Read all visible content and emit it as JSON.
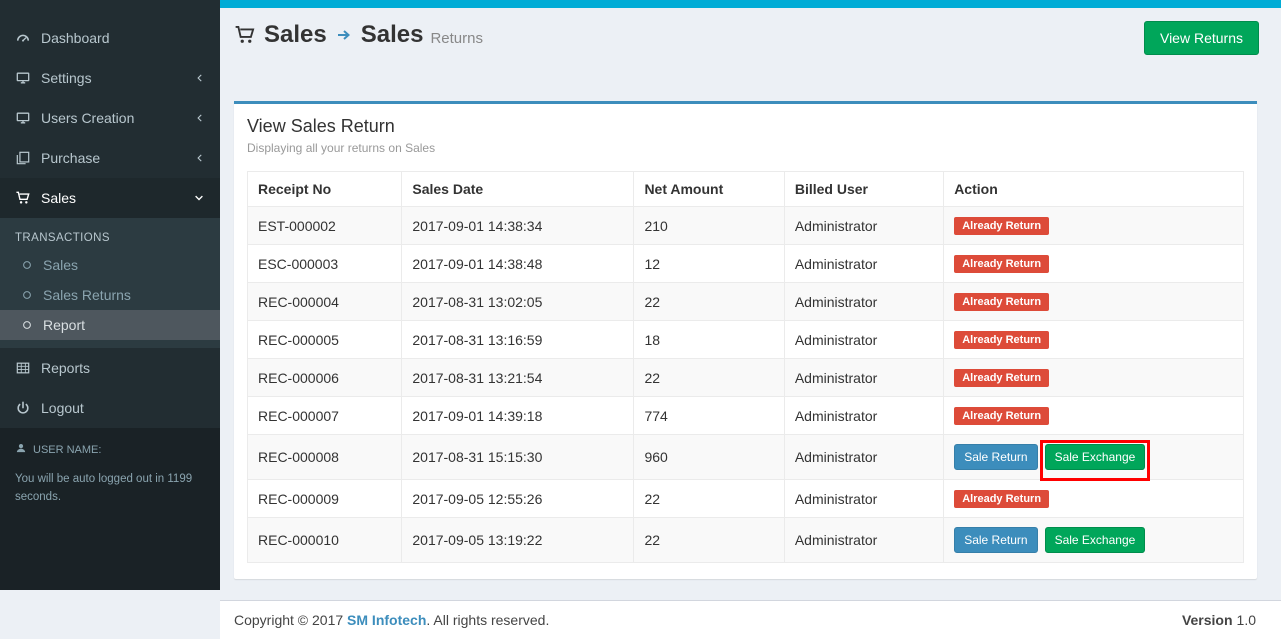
{
  "colors": {
    "primary": "#3c8dbc",
    "success": "#00a65a",
    "danger": "#dd4b39",
    "topbar": "#00acd6",
    "annotation": "#ff0000"
  },
  "sidebar": {
    "items": [
      {
        "label": "Dashboard",
        "icon": "dashboard-icon"
      },
      {
        "label": "Settings",
        "icon": "desktop-icon",
        "chevron": "left"
      },
      {
        "label": "Users Creation",
        "icon": "desktop-icon",
        "chevron": "left"
      },
      {
        "label": "Purchase",
        "icon": "copy-icon",
        "chevron": "left"
      },
      {
        "label": "Sales",
        "icon": "cart-icon",
        "chevron": "down",
        "active": true
      }
    ],
    "section_label": "TRANSACTIONS",
    "sub_items": [
      {
        "label": "Sales",
        "icon": "circle-icon"
      },
      {
        "label": "Sales Returns",
        "icon": "circle-icon"
      },
      {
        "label": "Report",
        "icon": "circle-icon",
        "highlighted": true
      }
    ],
    "secondary_items": [
      {
        "label": "Reports",
        "icon": "table-icon"
      },
      {
        "label": "Logout",
        "icon": "power-icon"
      }
    ],
    "user_label": "USER NAME:",
    "auto_logout_text": "You will be auto logged out in 1199 seconds."
  },
  "header": {
    "breadcrumb_primary": "Sales",
    "breadcrumb_secondary": "Sales",
    "breadcrumb_suffix": "Returns",
    "view_returns_button": "View Returns"
  },
  "panel": {
    "title": "View Sales Return",
    "subtitle": "Displaying all your returns on Sales"
  },
  "table": {
    "columns": [
      "Receipt No",
      "Sales Date",
      "Net Amount",
      "Billed User",
      "Action"
    ],
    "rows": [
      {
        "receipt_no": "EST-000002",
        "sales_date": "2017-09-01 14:38:34",
        "net_amount": "210",
        "billed_user": "Administrator",
        "actions": [
          {
            "label": "Already Return",
            "style": "danger"
          }
        ]
      },
      {
        "receipt_no": "ESC-000003",
        "sales_date": "2017-09-01 14:38:48",
        "net_amount": "12",
        "billed_user": "Administrator",
        "actions": [
          {
            "label": "Already Return",
            "style": "danger"
          }
        ]
      },
      {
        "receipt_no": "REC-000004",
        "sales_date": "2017-08-31 13:02:05",
        "net_amount": "22",
        "billed_user": "Administrator",
        "actions": [
          {
            "label": "Already Return",
            "style": "danger"
          }
        ]
      },
      {
        "receipt_no": "REC-000005",
        "sales_date": "2017-08-31 13:16:59",
        "net_amount": "18",
        "billed_user": "Administrator",
        "actions": [
          {
            "label": "Already Return",
            "style": "danger"
          }
        ]
      },
      {
        "receipt_no": "REC-000006",
        "sales_date": "2017-08-31 13:21:54",
        "net_amount": "22",
        "billed_user": "Administrator",
        "actions": [
          {
            "label": "Already Return",
            "style": "danger"
          }
        ]
      },
      {
        "receipt_no": "REC-000007",
        "sales_date": "2017-09-01 14:39:18",
        "net_amount": "774",
        "billed_user": "Administrator",
        "actions": [
          {
            "label": "Already Return",
            "style": "danger"
          }
        ]
      },
      {
        "receipt_no": "REC-000008",
        "sales_date": "2017-08-31 15:15:30",
        "net_amount": "960",
        "billed_user": "Administrator",
        "actions": [
          {
            "label": "Sale Return",
            "style": "primary"
          },
          {
            "label": "Sale Exchange",
            "style": "success",
            "highlighted": true
          }
        ]
      },
      {
        "receipt_no": "REC-000009",
        "sales_date": "2017-09-05 12:55:26",
        "net_amount": "22",
        "billed_user": "Administrator",
        "actions": [
          {
            "label": "Already Return",
            "style": "danger"
          }
        ]
      },
      {
        "receipt_no": "REC-000010",
        "sales_date": "2017-09-05 13:19:22",
        "net_amount": "22",
        "billed_user": "Administrator",
        "actions": [
          {
            "label": "Sale Return",
            "style": "primary"
          },
          {
            "label": "Sale Exchange",
            "style": "success"
          }
        ]
      }
    ]
  },
  "footer": {
    "copyright_prefix": "Copyright © 2017",
    "brand": "SM Infotech",
    "copyright_suffix": ". All rights reserved.",
    "version_label": "Version",
    "version_value": "1.0"
  }
}
